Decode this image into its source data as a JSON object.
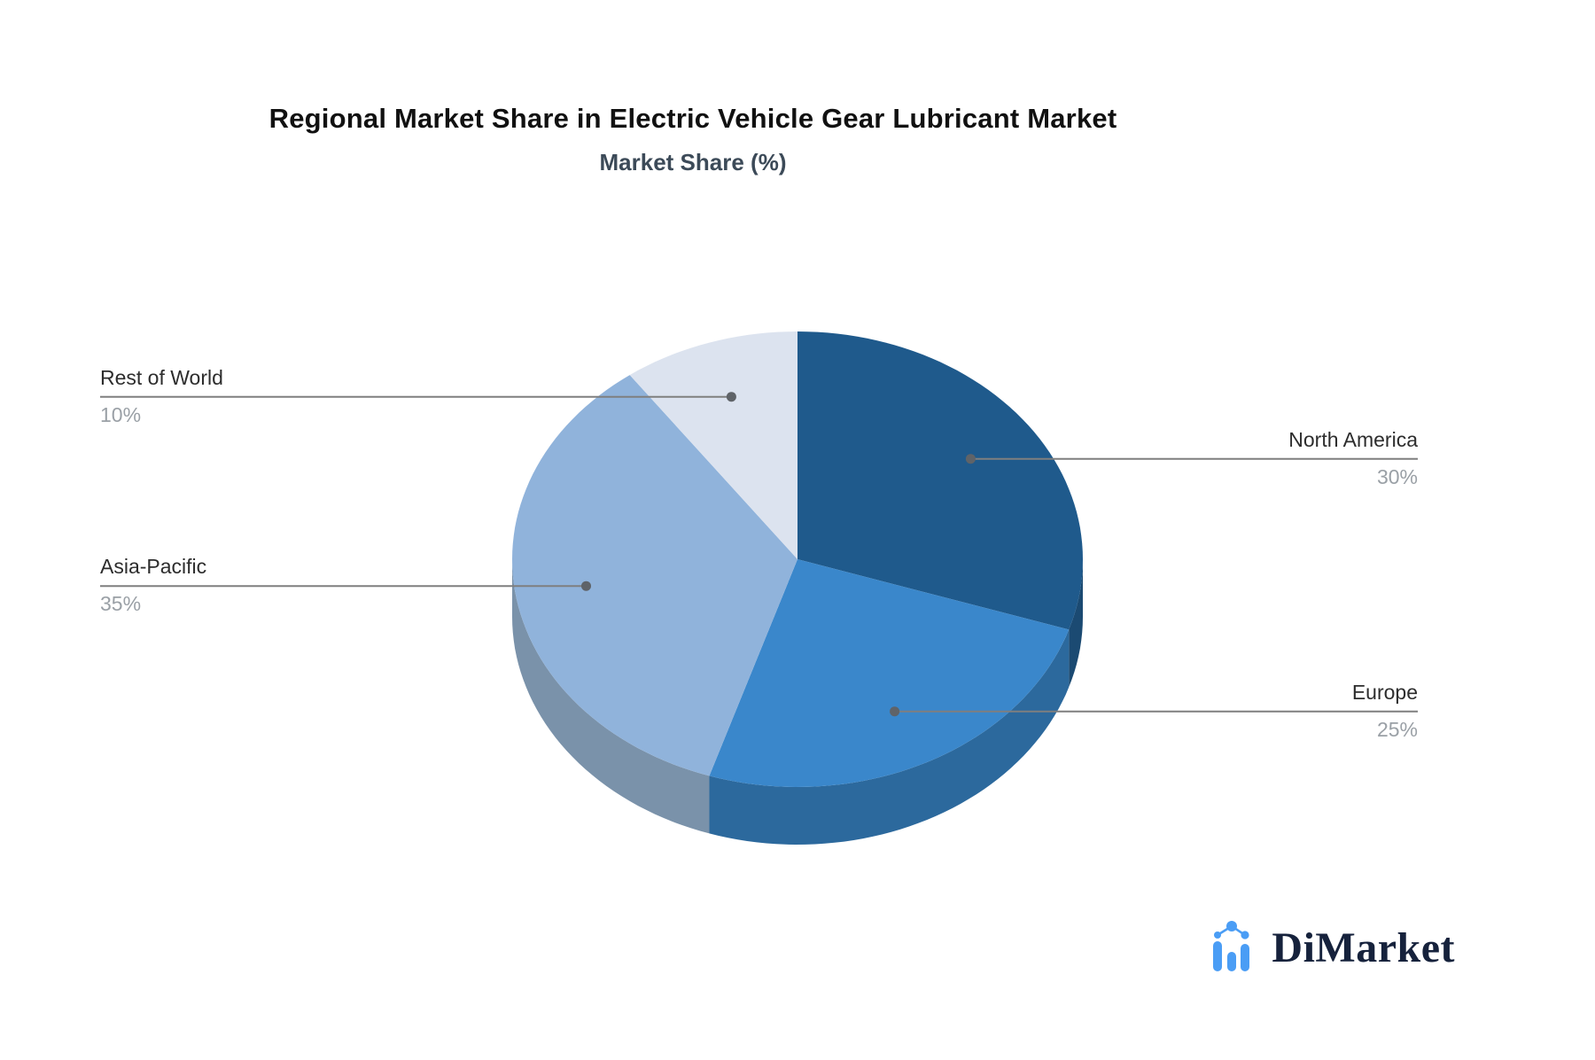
{
  "header": {
    "title": "Regional Market Share in Electric Vehicle Gear Lubricant Market",
    "subtitle": "Market Share (%)"
  },
  "chart_data": {
    "type": "pie",
    "title": "Regional Market Share in Electric Vehicle Gear Lubricant Market",
    "subtitle": "Market Share (%)",
    "unit": "%",
    "total": 100,
    "effect": "3d",
    "start_angle": "12-oclock",
    "direction": "clockwise",
    "legend_position": "callout-labels",
    "slices": [
      {
        "label": "North America",
        "value": 30,
        "pct_label": "30%",
        "color": "#1f5a8c",
        "side_color": "#1b4a72",
        "label_side": "right"
      },
      {
        "label": "Europe",
        "value": 25,
        "pct_label": "25%",
        "color": "#3a87cb",
        "side_color": "#2c699d",
        "label_side": "right"
      },
      {
        "label": "Asia-Pacific",
        "value": 35,
        "pct_label": "35%",
        "color": "#90b3db",
        "side_color": "#7a92aa",
        "label_side": "left"
      },
      {
        "label": "Rest of World",
        "value": 10,
        "pct_label": "10%",
        "color": "#dce3ef",
        "side_color": "#c3cede",
        "label_side": "left"
      }
    ],
    "style": {
      "leader_line_color": "#7f7f7f",
      "leader_dot_color": "#5f6368",
      "label_color": "#2d2d2d",
      "pct_color": "#9aa0a6"
    }
  },
  "branding": {
    "logo_text": "DiMarket",
    "logo_icon": "bar-chart-trend-icon",
    "logo_text_color": "#16223c",
    "logo_icon_color": "#4a9df5"
  }
}
